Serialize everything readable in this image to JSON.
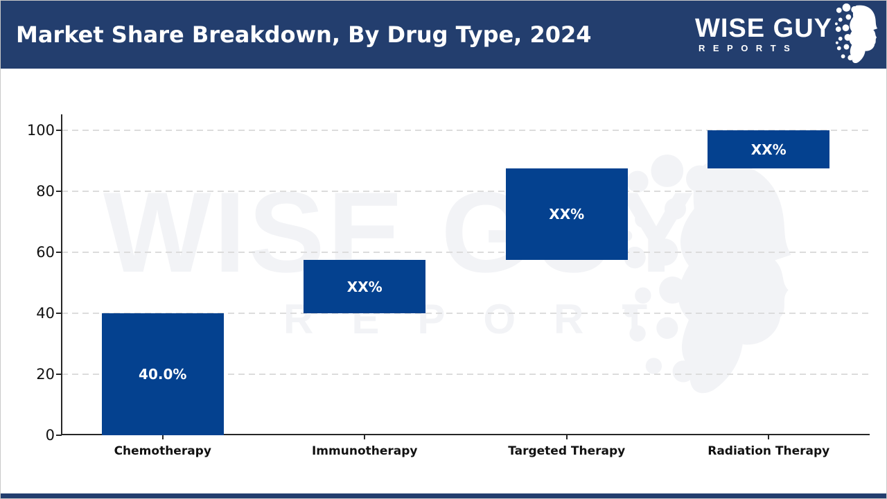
{
  "header": {
    "title": "Market Share Breakdown, By Drug Type, 2024",
    "logo_line1": "WISE GUY",
    "logo_line2": "REPORTS"
  },
  "watermark": {
    "line1": "WISE GUY",
    "line2": "REPORTS"
  },
  "chart_data": {
    "type": "bar",
    "subtype": "waterfall",
    "title": "Market Share Breakdown, By Drug Type, 2024",
    "categories": [
      "Chemotherapy",
      "Immunotherapy",
      "Targeted Therapy",
      "Radiation Therapy"
    ],
    "series": [
      {
        "name": "Market Share",
        "starts": [
          0,
          40,
          57.5,
          87.5
        ],
        "ends": [
          40,
          57.5,
          87.5,
          100
        ],
        "increments": [
          40,
          17.5,
          30,
          12.5
        ]
      }
    ],
    "bar_labels": [
      "40.0%",
      "XX%",
      "XX%",
      "XX%"
    ],
    "yticks": [
      0,
      20,
      40,
      60,
      80,
      100
    ],
    "ylim": [
      0,
      105
    ],
    "xlabel": "",
    "ylabel": "",
    "grid": "horizontal-dashed",
    "legend": "none"
  },
  "colors": {
    "header_bg": "#233e6e",
    "bar": "#04418f",
    "grid": "#dcdcdc",
    "axis": "#262626",
    "tick_text": "#111111",
    "bar_label_text": "#ffffff",
    "watermark": "#f2f3f6"
  }
}
